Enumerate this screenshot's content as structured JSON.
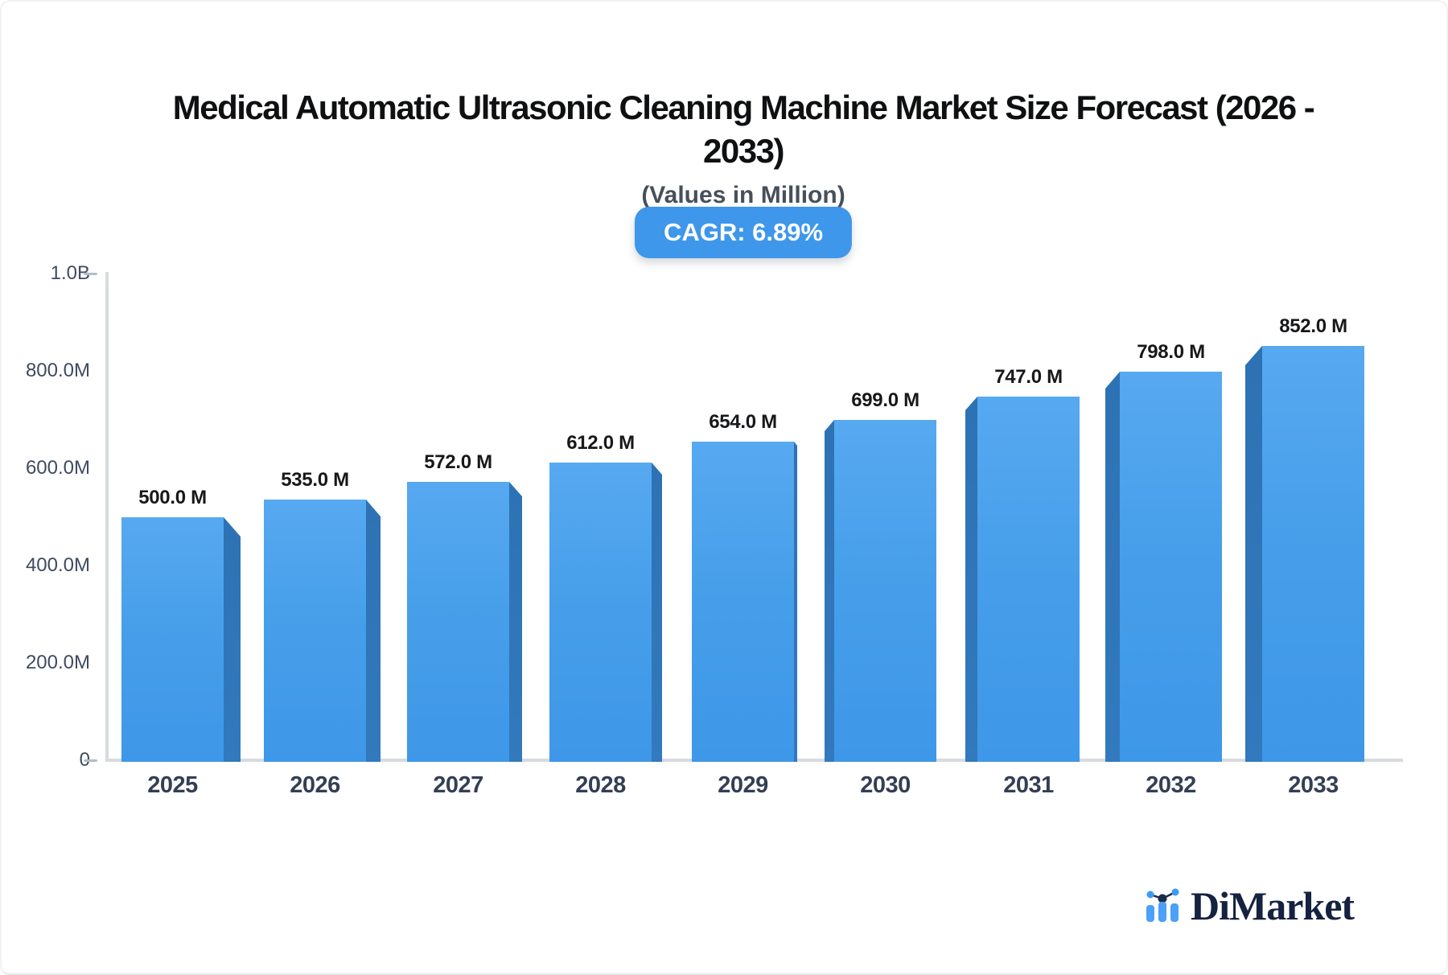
{
  "header": {
    "title_lines": [
      "Medical Automatic Ultrasonic Cleaning Machine Market Size Forecast (2026 -",
      "2033)"
    ],
    "subtitle": "(Values in Million)",
    "cagr_badge": "CAGR: 6.89%"
  },
  "branding": {
    "name": "DiMarket",
    "icon": "dimarket-minichart-logo-icon"
  },
  "colors": {
    "bar_face_top": "#57a9f0",
    "bar_face_bottom": "#3e97e8",
    "bar_side_shade": "#2d72b3",
    "badge_bg": "#3e97ea",
    "axis_line": "#d7dade",
    "tick_dash": "#b4bcc6",
    "y_label": "#3f4b61",
    "x_label": "#333f54",
    "value_label": "#17181a",
    "title": "#0f1011",
    "subtitle": "#46505c",
    "brand_navy": "#152240",
    "brand_blue": "#3d9bf3"
  },
  "chart_data": {
    "type": "bar",
    "title": "Medical Automatic Ultrasonic Cleaning Machine Market Size Forecast (2026 - 2033)",
    "subtitle": "(Values in Million)",
    "categories": [
      "2025",
      "2026",
      "2027",
      "2028",
      "2029",
      "2030",
      "2031",
      "2032",
      "2033"
    ],
    "values": [
      500,
      535,
      572,
      612,
      654,
      699,
      747,
      798,
      852
    ],
    "bar_labels": [
      "500.0 M",
      "535.0 M",
      "572.0 M",
      "612.0 M",
      "654.0 M",
      "699.0 M",
      "747.0 M",
      "798.0 M",
      "852.0 M"
    ],
    "xlabel": "",
    "ylabel": "",
    "ylim": [
      0,
      1000
    ],
    "ytick_values": [
      0,
      200,
      400,
      600,
      800,
      1000
    ],
    "ytick_labels": [
      "0",
      "200.0M",
      "400.0M",
      "600.0M",
      "800.0M",
      "1.0B"
    ],
    "grid": false,
    "legend": false,
    "style": "3d-bars-center-perspective"
  }
}
